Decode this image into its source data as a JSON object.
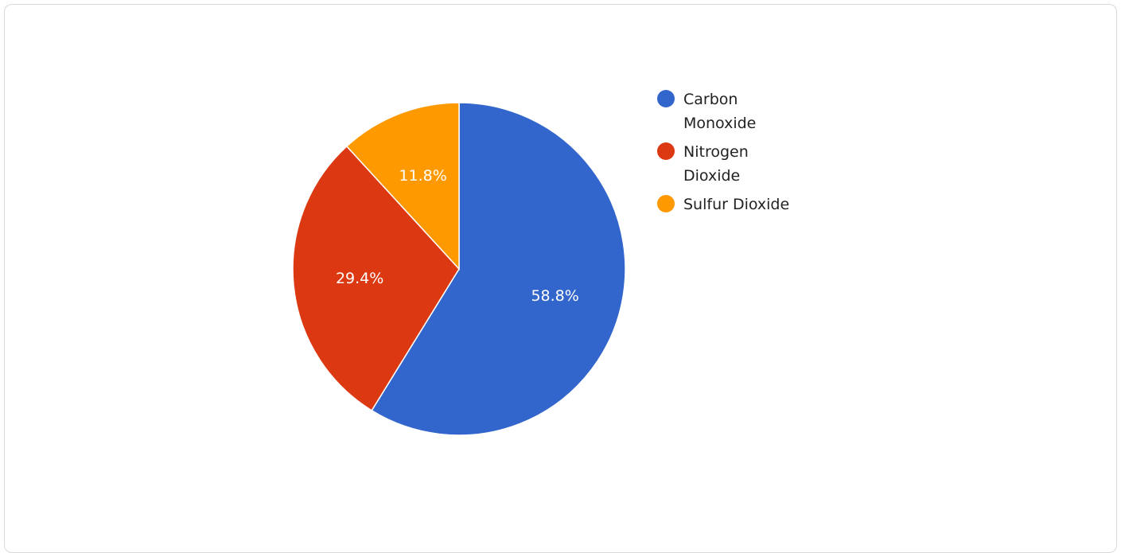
{
  "chart_data": {
    "type": "pie",
    "categories": [
      "Carbon Monoxide",
      "Nitrogen Dioxide",
      "Sulfur Dioxide"
    ],
    "values": [
      58.8,
      29.4,
      11.8
    ],
    "value_labels": [
      "58.8%",
      "29.4%",
      "11.8%"
    ],
    "colors": [
      "#3366CC",
      "#DC3912",
      "#FF9900"
    ],
    "legend_position": "right",
    "title": ""
  }
}
